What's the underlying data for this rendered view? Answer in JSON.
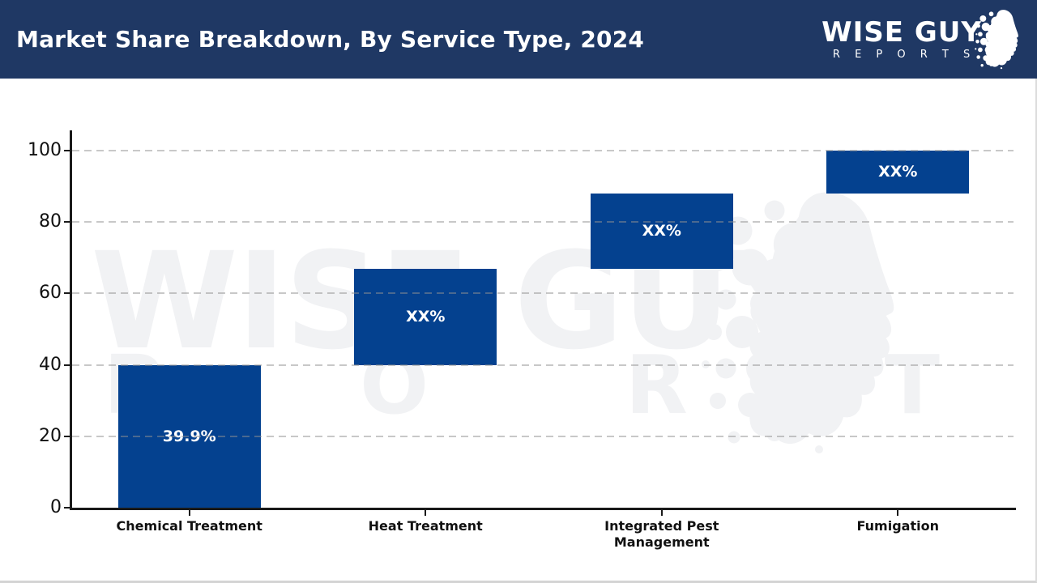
{
  "header": {
    "title": "Market Share Breakdown, By Service Type, 2024",
    "logo": {
      "name": "WISE GUY",
      "sub": "R E P O R T S"
    }
  },
  "watermark": {
    "line1": "WISE GUY",
    "line2": "P O R T S"
  },
  "chart_data": {
    "type": "bar",
    "subtype": "waterfall",
    "title": "Market Share Breakdown, By Service Type, 2024",
    "categories": [
      "Chemical Treatment",
      "Heat Treatment",
      "Integrated Pest Management",
      "Fumigation"
    ],
    "segments": [
      {
        "category": "Chemical Treatment",
        "start": 0,
        "end": 39.9,
        "label": "39.9%"
      },
      {
        "category": "Heat Treatment",
        "start": 39.9,
        "end": 67,
        "label": "XX%"
      },
      {
        "category": "Integrated Pest Management",
        "start": 67,
        "end": 88,
        "label": "XX%"
      },
      {
        "category": "Fumigation",
        "start": 88,
        "end": 100,
        "label": "XX%"
      }
    ],
    "xlabel": "",
    "ylabel": "",
    "ylim": [
      0,
      100
    ],
    "yticks": [
      0,
      20,
      40,
      60,
      80,
      100
    ],
    "grid": "horizontal dashed",
    "legend": "none",
    "colors": {
      "bar": "#04418f",
      "bar_label": "#ffffff",
      "header_bg": "#1f3864",
      "axis": "#1a1a1a",
      "gridline": "#cfcfcf",
      "watermark": "#f1f2f4"
    }
  }
}
